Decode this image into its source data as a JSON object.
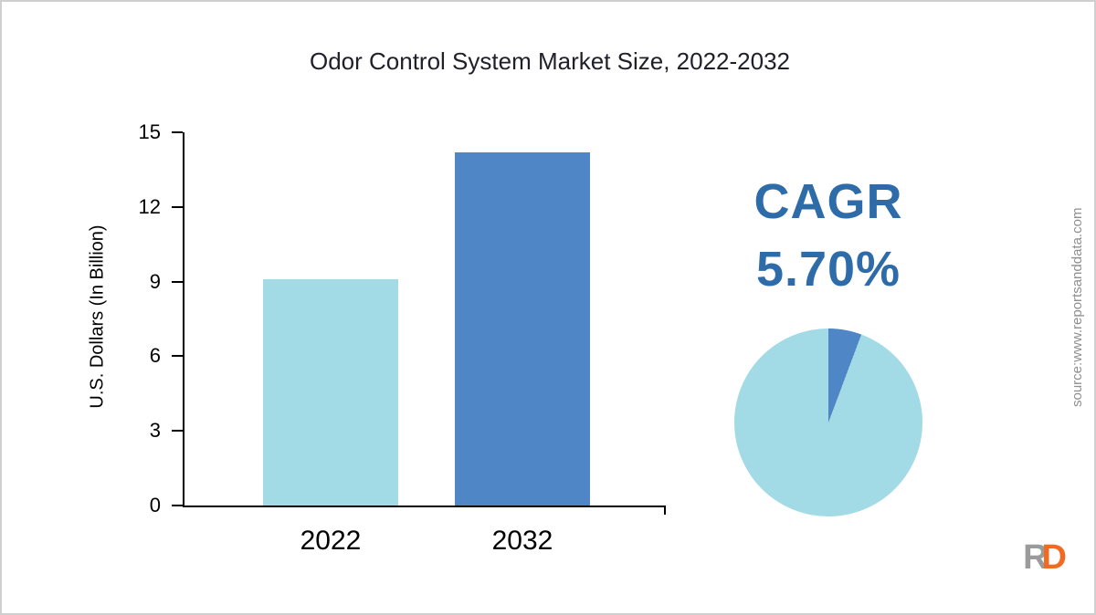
{
  "chart_data": {
    "type": "bar",
    "categories": [
      "2022",
      "2032"
    ],
    "values": [
      9.1,
      14.2
    ],
    "title": "Odor Control System Market Size, 2022-2032",
    "xlabel": "",
    "ylabel": "U.S. Dollars (In Billion)",
    "ylim": [
      0,
      15
    ],
    "yticks": [
      0,
      3,
      6,
      9,
      12,
      15
    ],
    "bar_colors": [
      "#a2dbe5",
      "#4f86c6"
    ],
    "grid": false,
    "legend": "none"
  },
  "cagr": {
    "label": "CAGR",
    "value": "5.70%",
    "percent": 5.7
  },
  "pie": {
    "slice_percent": 5.7,
    "main_color": "#a2dbe5",
    "slice_color": "#4f86c6"
  },
  "source": "source:www.reportsanddata.com",
  "logo": {
    "letter_r": "R",
    "letter_d": "D"
  },
  "colors": {
    "accent_blue": "#2d6ca9",
    "bar_light": "#a2dbe5",
    "bar_dark": "#4f86c6",
    "title_text": "#20202a",
    "source_text": "#8f8f8f",
    "logo_gray": "#9b9b9b",
    "logo_orange": "#f26a21"
  }
}
